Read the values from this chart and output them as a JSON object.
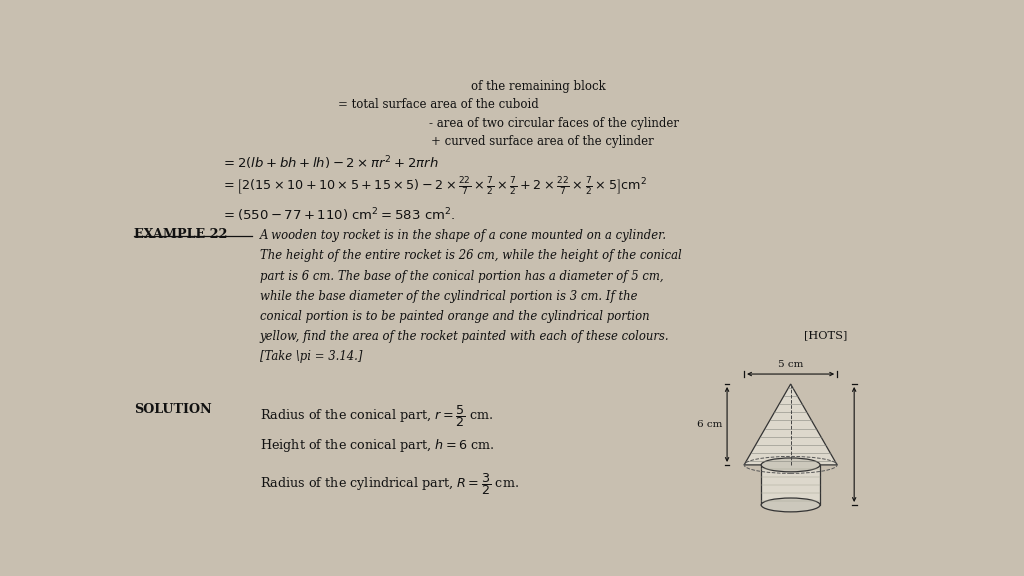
{
  "bg_color": "#c8bfb0",
  "text_color": "#111111",
  "ff": "DejaVu Serif",
  "top_line1": "of the remaining block",
  "top_line2": "= total surface area of the cuboid",
  "line3": "- area of two circular faces of the cylinder",
  "line4": "+ curved surface area of the cylinder",
  "formula1": "= 2(lb + bh + lh) - 2 \\times \\pi r^2 + 2\\pi rh",
  "formula2": "= \\left[2(15\\times10+10\\times5+15\\times5)-2\\times\\frac{22}{7}\\times\\frac{7}{2}\\times\\frac{7}{2}+2\\times\\frac{22}{7}\\times\\frac{7}{2}\\times5\\right]\\mathrm{cm^2}",
  "formula3": "= (550 - 77 + 110)\\ \\mathrm{cm^2} = 583\\ \\mathrm{cm^2}.",
  "example_label": "EXAMPLE 22",
  "example_lines": [
    "A wooden toy rocket is in the shape of a cone mounted on a cylinder.",
    "The height of the entire rocket is 26 cm, while the height of the conical",
    "part is 6 cm. The base of the conical portion has a diameter of 5 cm,",
    "while the base diameter of the cylindrical portion is 3 cm. If the",
    "conical portion is to be painted orange and the cylindrical portion",
    "yellow, find the area of the rocket painted with each of these colours.",
    "[Take \\pi = 3.14.]"
  ],
  "hots": "[HOTS]",
  "solution_label": "SOLUTION",
  "sol1": "Radius of the conical part, $r = \\dfrac{5}{2}$ cm.",
  "sol2": "Height of the conical part, $h = 6$ cm.",
  "sol3": "Radius of the cylindrical part, $R = \\dfrac{3}{2}$ cm.",
  "diag_5cm": "5 cm",
  "diag_6cm": "6 cm"
}
